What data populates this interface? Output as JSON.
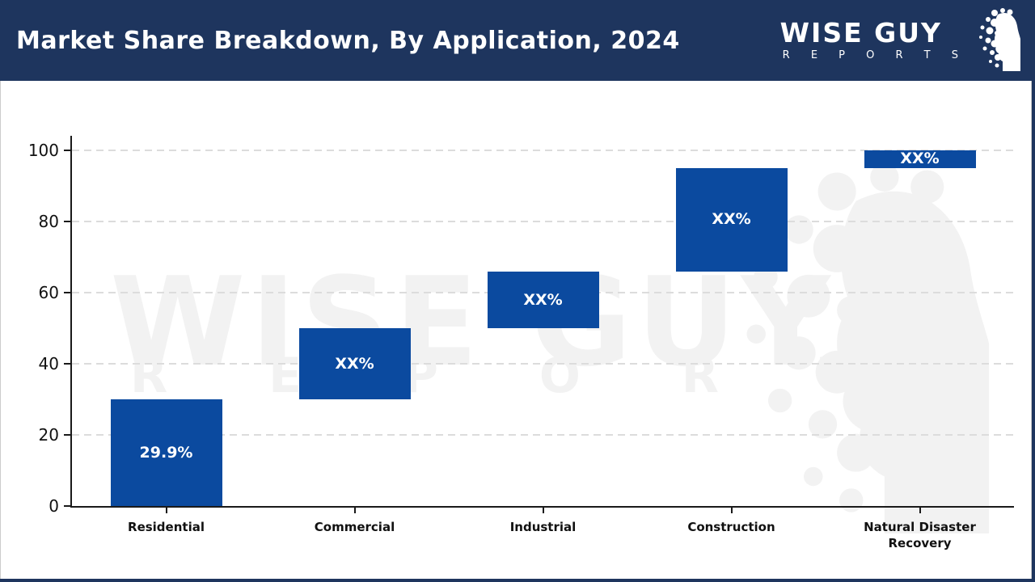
{
  "header": {
    "title": "Market Share Breakdown, By Application, 2024",
    "bg_color": "#1e355e",
    "logo": {
      "line1": "WISE GUY",
      "line2": "R E P O R T S"
    }
  },
  "watermark": {
    "line1": "WISE GUY",
    "line2": "R E P O R T S"
  },
  "chart_data": {
    "type": "waterfall",
    "title": "Market Share Breakdown, By Application, 2024",
    "xlabel": "",
    "ylabel": "",
    "categories": [
      "Residential",
      "Commercial",
      "Industrial",
      "Construction",
      "Natural Disaster Recovery"
    ],
    "segments": [
      {
        "category": "Residential",
        "start": 0,
        "end": 29.9,
        "label": "29.9%"
      },
      {
        "category": "Commercial",
        "start": 29.9,
        "end": 49.9,
        "label": "XX%"
      },
      {
        "category": "Industrial",
        "start": 49.9,
        "end": 65.9,
        "label": "XX%"
      },
      {
        "category": "Construction",
        "start": 65.9,
        "end": 94.9,
        "label": "XX%"
      },
      {
        "category": "Natural Disaster Recovery",
        "start": 94.9,
        "end": 100,
        "label": "XX%"
      }
    ],
    "y_ticks": [
      0,
      20,
      40,
      60,
      80,
      100
    ],
    "ylim": [
      0,
      104
    ],
    "grid": "horizontal-dashed",
    "legend": "none",
    "bar_color": "#0b4a9f",
    "bar_label_color": "#ffffff",
    "grid_color": "#dcdcdc",
    "axis_color": "#1a1a1a",
    "watermark_color": "#f2f2f2"
  }
}
